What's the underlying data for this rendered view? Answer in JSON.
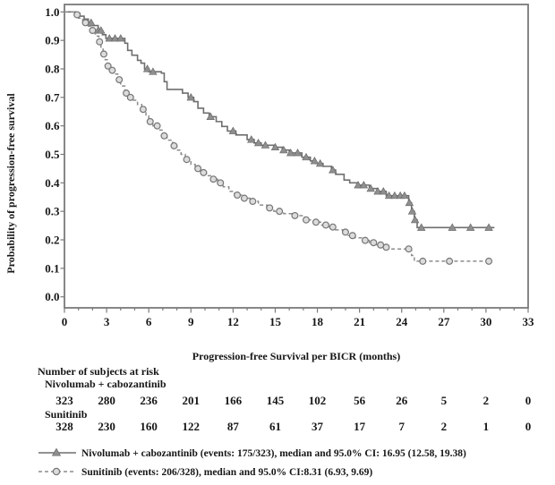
{
  "figure": {
    "y_axis_label": "Probability of progression-free survival",
    "x_axis_label": "Progression-free Survival per BICR (months)"
  },
  "at_risk": {
    "header": "Number of subjects at risk",
    "groups": [
      {
        "label": "Nivolumab + cabozantinib",
        "counts": [
          323,
          280,
          236,
          201,
          166,
          145,
          102,
          56,
          26,
          5,
          2,
          0
        ]
      },
      {
        "label": "Sunitinib",
        "counts": [
          328,
          230,
          160,
          122,
          87,
          61,
          37,
          17,
          7,
          2,
          1,
          0
        ]
      }
    ]
  },
  "legend": [
    {
      "label": "Nivolumab + cabozantinib (events: 175/323), median and 95.0% CI: 16.95 (12.58, 19.38)",
      "marker": "triangle-on-solid-line"
    },
    {
      "label": "Sunitinib (events: 206/328), median and 95.0% CI:8.31 (6.93, 9.69)",
      "marker": "circle-on-dashed-line"
    }
  ],
  "colors": {
    "nivo_line": "#6f6f6f",
    "suni_line": "#8c8c8c",
    "triangle_fill": "#8f8f8f",
    "circle_fill": "#dcdcdc",
    "axis": "#7a7a7a",
    "text": "#161616",
    "background": "#ffffff"
  },
  "chart_data": {
    "type": "line",
    "variant": "kaplan-meier-step",
    "title": "",
    "xlabel": "Progression-free Survival per BICR (months)",
    "ylabel": "Probability of progression-free survival",
    "xlim": [
      0,
      33
    ],
    "ylim": [
      0.0,
      1.0
    ],
    "x_ticks": [
      0,
      3,
      6,
      9,
      12,
      15,
      18,
      21,
      24,
      27,
      30,
      33
    ],
    "x_minor_tick_every": 1,
    "y_ticks": [
      0.0,
      0.1,
      0.2,
      0.3,
      0.4,
      0.5,
      0.6,
      0.7,
      0.8,
      0.9,
      1.0
    ],
    "grid": false,
    "legend_position": "below",
    "series": [
      {
        "name": "Nivolumab + cabozantinib",
        "events": "175/323",
        "median": 16.95,
        "ci95": [
          12.58,
          19.38
        ],
        "line": "solid",
        "marker": "triangle",
        "steps": [
          [
            0.8,
            0.995
          ],
          [
            1.1,
            0.985
          ],
          [
            1.4,
            0.975
          ],
          [
            1.7,
            0.962
          ],
          [
            2.0,
            0.952
          ],
          [
            2.4,
            0.935
          ],
          [
            2.7,
            0.92
          ],
          [
            2.95,
            0.907
          ],
          [
            4.3,
            0.89
          ],
          [
            4.5,
            0.865
          ],
          [
            4.8,
            0.848
          ],
          [
            5.2,
            0.83
          ],
          [
            5.45,
            0.82
          ],
          [
            5.7,
            0.8
          ],
          [
            6.0,
            0.79
          ],
          [
            6.9,
            0.785
          ],
          [
            7.1,
            0.755
          ],
          [
            7.3,
            0.728
          ],
          [
            8.4,
            0.715
          ],
          [
            8.8,
            0.7
          ],
          [
            9.2,
            0.685
          ],
          [
            9.5,
            0.662
          ],
          [
            9.9,
            0.645
          ],
          [
            10.3,
            0.632
          ],
          [
            10.8,
            0.615
          ],
          [
            11.2,
            0.598
          ],
          [
            11.6,
            0.582
          ],
          [
            12.2,
            0.568
          ],
          [
            13.0,
            0.552
          ],
          [
            13.5,
            0.54
          ],
          [
            14.0,
            0.532
          ],
          [
            14.9,
            0.525
          ],
          [
            15.5,
            0.515
          ],
          [
            16.0,
            0.505
          ],
          [
            16.9,
            0.49
          ],
          [
            17.5,
            0.477
          ],
          [
            17.9,
            0.468
          ],
          [
            18.4,
            0.458
          ],
          [
            19.0,
            0.445
          ],
          [
            19.3,
            0.43
          ],
          [
            19.9,
            0.41
          ],
          [
            20.3,
            0.4
          ],
          [
            20.9,
            0.392
          ],
          [
            21.7,
            0.38
          ],
          [
            22.3,
            0.37
          ],
          [
            22.9,
            0.355
          ],
          [
            24.5,
            0.33
          ],
          [
            24.7,
            0.3
          ],
          [
            24.9,
            0.27
          ],
          [
            25.1,
            0.243
          ],
          [
            30.6,
            0.243
          ]
        ],
        "censor_marks": [
          1.9,
          2.4,
          2.6,
          3.2,
          3.6,
          4.0,
          5.9,
          6.3,
          9.0,
          10.4,
          12.0,
          13.3,
          13.8,
          14.3,
          15.0,
          15.6,
          16.1,
          16.6,
          17.2,
          17.8,
          18.2,
          19.1,
          20.9,
          21.3,
          21.8,
          22.3,
          22.7,
          23.1,
          23.5,
          23.9,
          24.2,
          24.55,
          24.75,
          24.95,
          25.4,
          27.6,
          28.9,
          30.2
        ]
      },
      {
        "name": "Sunitinib",
        "events": "206/328",
        "median": 8.31,
        "ci95": [
          6.93,
          9.69
        ],
        "line": "dashed",
        "marker": "circle",
        "steps": [
          [
            0.7,
            0.99
          ],
          [
            1.0,
            0.978
          ],
          [
            1.3,
            0.962
          ],
          [
            1.6,
            0.95
          ],
          [
            1.9,
            0.935
          ],
          [
            2.2,
            0.915
          ],
          [
            2.45,
            0.895
          ],
          [
            2.6,
            0.872
          ],
          [
            2.75,
            0.852
          ],
          [
            2.9,
            0.832
          ],
          [
            3.05,
            0.81
          ],
          [
            3.2,
            0.795
          ],
          [
            3.5,
            0.782
          ],
          [
            3.8,
            0.762
          ],
          [
            4.0,
            0.74
          ],
          [
            4.3,
            0.715
          ],
          [
            4.5,
            0.7
          ],
          [
            4.8,
            0.69
          ],
          [
            5.2,
            0.675
          ],
          [
            5.5,
            0.658
          ],
          [
            5.8,
            0.635
          ],
          [
            6.0,
            0.615
          ],
          [
            6.3,
            0.6
          ],
          [
            6.7,
            0.585
          ],
          [
            7.0,
            0.565
          ],
          [
            7.3,
            0.55
          ],
          [
            7.7,
            0.53
          ],
          [
            8.0,
            0.515
          ],
          [
            8.3,
            0.5
          ],
          [
            8.6,
            0.482
          ],
          [
            9.0,
            0.465
          ],
          [
            9.3,
            0.45
          ],
          [
            9.7,
            0.436
          ],
          [
            10.1,
            0.425
          ],
          [
            10.5,
            0.413
          ],
          [
            10.9,
            0.4
          ],
          [
            11.3,
            0.386
          ],
          [
            11.7,
            0.37
          ],
          [
            12.1,
            0.357
          ],
          [
            12.6,
            0.346
          ],
          [
            13.2,
            0.335
          ],
          [
            13.8,
            0.322
          ],
          [
            14.4,
            0.312
          ],
          [
            14.9,
            0.3
          ],
          [
            15.6,
            0.292
          ],
          [
            16.3,
            0.285
          ],
          [
            17.1,
            0.27
          ],
          [
            17.7,
            0.262
          ],
          [
            18.3,
            0.252
          ],
          [
            18.8,
            0.245
          ],
          [
            19.3,
            0.235
          ],
          [
            19.8,
            0.227
          ],
          [
            20.2,
            0.215
          ],
          [
            20.7,
            0.207
          ],
          [
            21.2,
            0.198
          ],
          [
            21.7,
            0.19
          ],
          [
            22.2,
            0.182
          ],
          [
            22.7,
            0.174
          ],
          [
            23.0,
            0.168
          ],
          [
            24.7,
            0.145
          ],
          [
            24.9,
            0.125
          ],
          [
            30.3,
            0.125
          ]
        ],
        "censor_marks": [
          0.9,
          1.5,
          2.0,
          2.5,
          2.8,
          3.1,
          3.4,
          3.9,
          4.4,
          4.7,
          5.6,
          6.1,
          6.6,
          7.1,
          7.8,
          8.7,
          9.5,
          9.9,
          10.6,
          11.1,
          12.3,
          12.8,
          13.4,
          14.6,
          15.3,
          16.4,
          17.2,
          17.9,
          18.6,
          19.1,
          20.0,
          20.5,
          21.4,
          22.0,
          22.5,
          22.9,
          24.5,
          25.5,
          27.4,
          30.2
        ]
      }
    ]
  }
}
